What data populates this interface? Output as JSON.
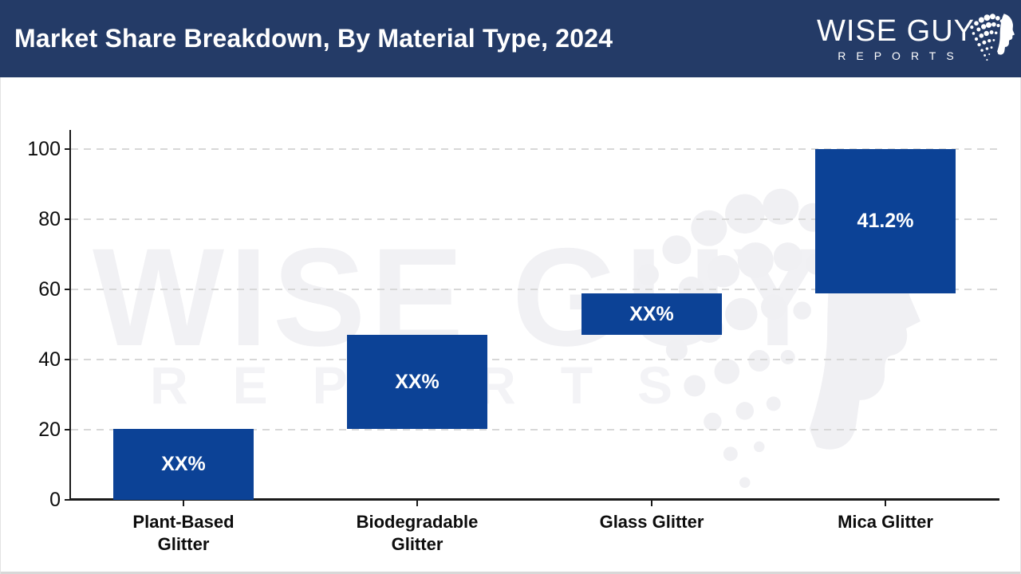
{
  "header": {
    "title": "Market Share Breakdown, By Material Type, 2024",
    "bg_color": "#243b67",
    "logo": {
      "name": "WISE GUY",
      "sub": "REPORTS"
    }
  },
  "watermark": {
    "line1": "WISE GUY",
    "line2": "REPORTS"
  },
  "chart_data": {
    "type": "bar",
    "subtype": "waterfall-floating-bars",
    "title": "Market Share Breakdown, By Material Type, 2024",
    "categories": [
      "Plant-Based Glitter",
      "Biodegradable Glitter",
      "Glass Glitter",
      "Mica Glitter"
    ],
    "category_label_lines": [
      [
        "Plant-Based",
        "Glitter"
      ],
      [
        "Biodegradable",
        "Glitter"
      ],
      [
        "Glass Glitter"
      ],
      [
        "Mica Glitter"
      ]
    ],
    "segments": [
      {
        "category": "Plant-Based Glitter",
        "start": 0,
        "end": 20.2,
        "label": "XX%"
      },
      {
        "category": "Biodegradable Glitter",
        "start": 20.2,
        "end": 47.0,
        "label": "XX%"
      },
      {
        "category": "Glass Glitter",
        "start": 47.0,
        "end": 58.8,
        "label": "XX%"
      },
      {
        "category": "Mica Glitter",
        "start": 58.8,
        "end": 100,
        "label": "41.2%"
      }
    ],
    "xlabel": "",
    "ylabel": "",
    "ylim": [
      0,
      100
    ],
    "yticks": [
      0,
      20,
      40,
      60,
      80,
      100
    ],
    "grid": "horizontal dashed",
    "legend": "none",
    "bar_color": "#0c4296",
    "bar_label_color": "#ffffff"
  }
}
